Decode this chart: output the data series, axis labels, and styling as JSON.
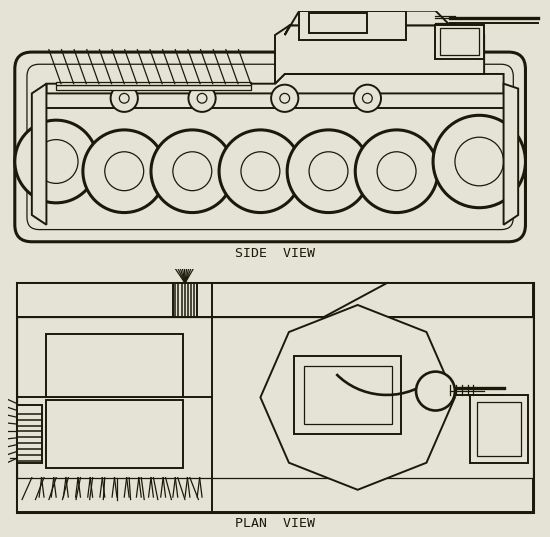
{
  "bg_color": "#e5e3d5",
  "line_color": "#1a1a0a",
  "title_side": "SIDE  VIEW",
  "title_plan": "PLAN  VIEW",
  "title_fontsize": 9.5,
  "lw": 1.4,
  "lw_thick": 2.2,
  "lw_thin": 0.9
}
